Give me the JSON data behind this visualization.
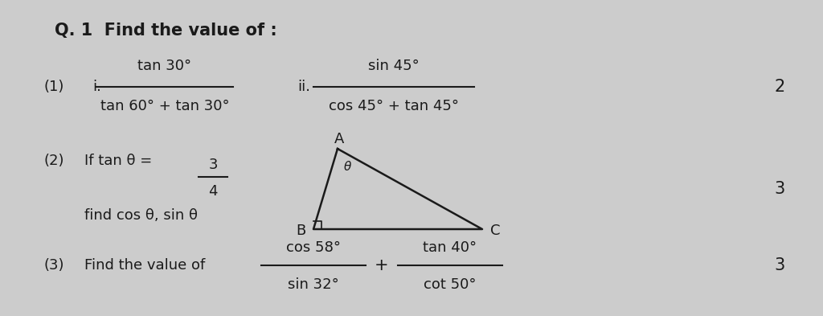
{
  "background_color": "#cccccc",
  "title": "Q. 1  Find the value of :",
  "q1_label": "(1)",
  "q1i_prefix": "i.",
  "q1i_numerator": "tan 30°",
  "q1i_denominator": "tan 60° + tan 30°",
  "q1ii_prefix": "ii.",
  "q1ii_numerator": "sin 45°",
  "q1ii_denominator": "cos 45° + tan 45°",
  "q1_mark": "2",
  "q2_label": "(2)",
  "q2_text1": "If tan θ =",
  "q2_frac_num": "3",
  "q2_frac_den": "4",
  "q2_text2": "find cos θ, sin θ",
  "q2_mark": "3",
  "q3_label": "(3)",
  "q3_text": "Find the value of",
  "q3_frac1_num": "cos 58°",
  "q3_frac1_den": "sin 32°",
  "q3_plus": "+",
  "q3_frac2_num": "tan 40°",
  "q3_frac2_den": "cot 50°",
  "q3_mark": "3",
  "triangle_theta_label": "θ",
  "triangle_A_label": "A",
  "triangle_B_label": "B",
  "triangle_C_label": "C",
  "text_color": "#1a1a1a",
  "fraction_bar_color": "#1a1a1a",
  "font_size_title": 15,
  "font_size_main": 13,
  "font_size_mark": 15
}
